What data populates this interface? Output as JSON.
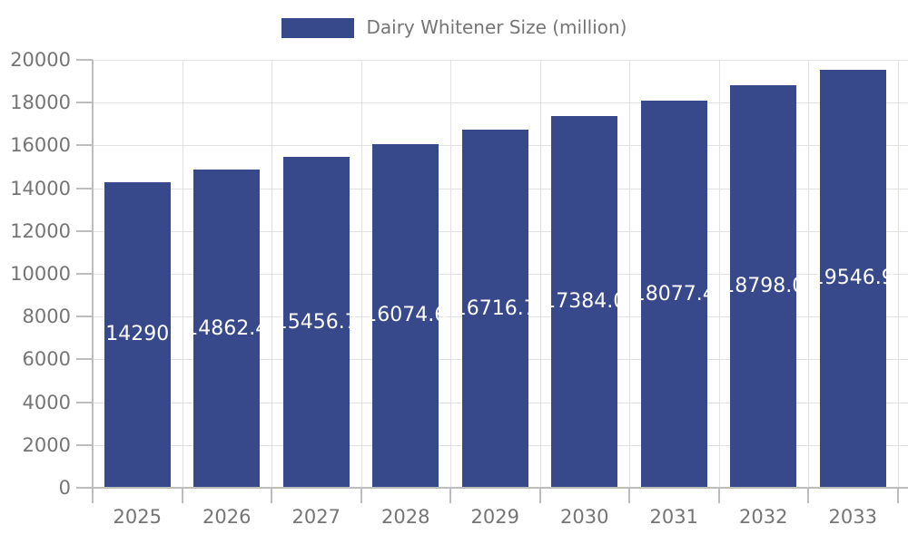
{
  "chart_data": {
    "type": "bar",
    "legend": {
      "label": "Dairy Whitener Size (million)",
      "position": "top-center"
    },
    "categories": [
      "2025",
      "2026",
      "2027",
      "2028",
      "2029",
      "2030",
      "2031",
      "2032",
      "2033"
    ],
    "series": [
      {
        "name": "Dairy Whitener Size (million)",
        "values": [
          14290,
          14862.4,
          15456.7,
          16074.6,
          16716.7,
          17384.0,
          18077.4,
          18798.0,
          19546.9
        ],
        "bar_labels": [
          "14290",
          "14862.4",
          "15456.7",
          "16074.6",
          "16716.7",
          "17384.0",
          "18077.4",
          "18798.0",
          "19546.9"
        ]
      }
    ],
    "ylim": [
      0,
      20000
    ],
    "ytick_step": 2000,
    "ytick_labels": [
      "0",
      "2000",
      "4000",
      "6000",
      "8000",
      "10000",
      "12000",
      "14000",
      "16000",
      "18000",
      "20000"
    ],
    "grid": true,
    "colors": {
      "bar": "#37498A",
      "grid": "#e2e2e2",
      "axis": "#bdbdbd",
      "tick_text": "#757575",
      "legend_text": "#757575",
      "bar_label_text": "#ffffff",
      "background": "#ffffff"
    }
  }
}
